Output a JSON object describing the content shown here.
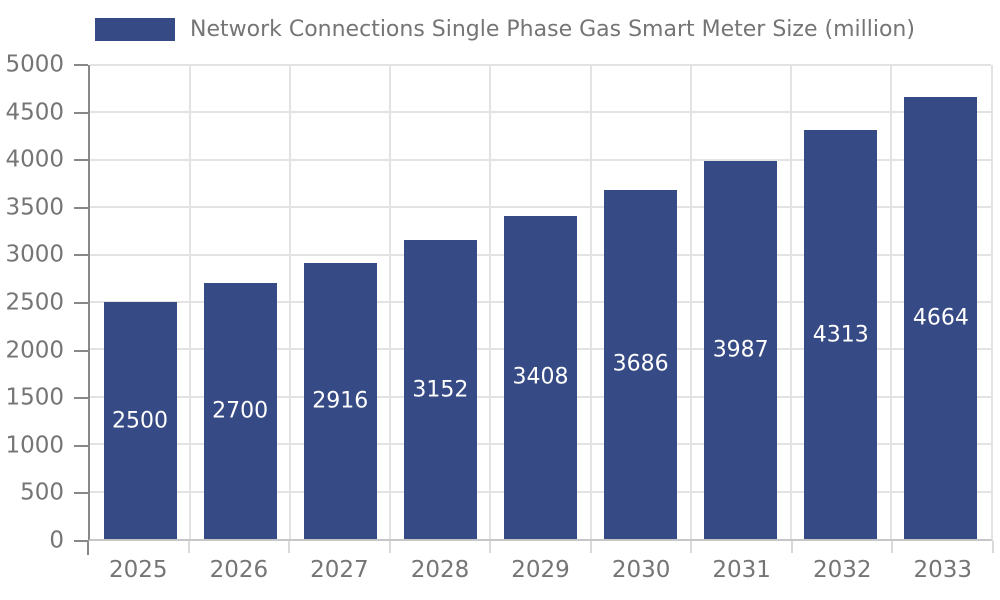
{
  "legend": {
    "label": "Network Connections Single Phase Gas Smart Meter Size (million)",
    "swatch_color": "#364a85"
  },
  "chart_data": {
    "type": "bar",
    "title": "",
    "categories": [
      "2025",
      "2026",
      "2027",
      "2028",
      "2029",
      "2030",
      "2031",
      "2032",
      "2033"
    ],
    "series": [
      {
        "name": "Network Connections Single Phase Gas Smart Meter Size (million)",
        "values": [
          2500,
          2700,
          2916,
          3152,
          3408,
          3686,
          3987,
          4313,
          4664
        ]
      }
    ],
    "xlabel": "",
    "ylabel": "",
    "ylim": [
      0,
      5000
    ],
    "yticks": [
      0,
      500,
      1000,
      1500,
      2000,
      2500,
      3000,
      3500,
      4000,
      4500,
      5000
    ],
    "bar_labels_visible": true,
    "grid": true,
    "legend_position": "top-left",
    "colors": {
      "bar": "#364a85",
      "bar_label": "#ffffff",
      "axis_label": "#757575",
      "grid_line": "#e3e3e3",
      "y_axis_line": "#888888",
      "x_axis_line": "#c6c6c6"
    }
  }
}
